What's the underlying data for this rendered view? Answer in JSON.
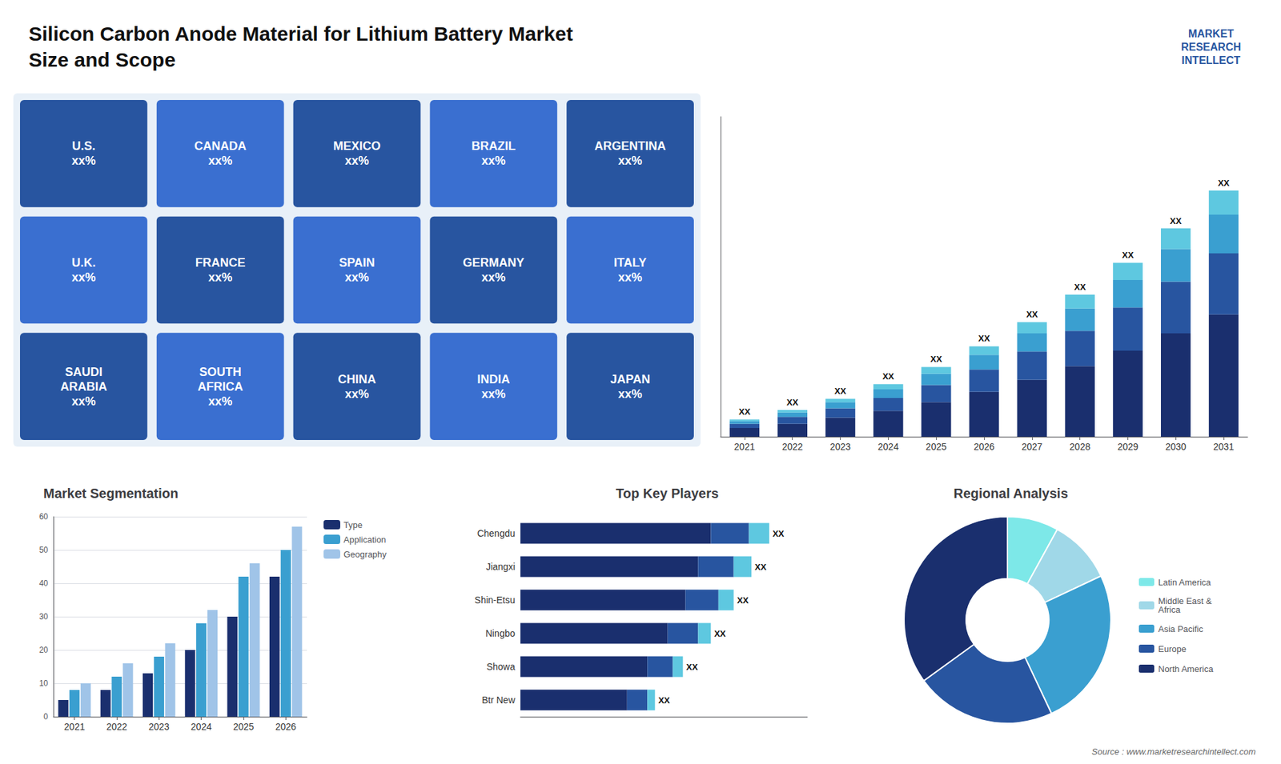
{
  "chart_data": [
    {
      "type": "bar",
      "title": "Silicon Carbon Anode Material for Lithium Battery Market\nSize and Scope",
      "stacked": true,
      "categories": [
        "2021",
        "2022",
        "2023",
        "2024",
        "2025",
        "2026",
        "2027",
        "2028",
        "2029",
        "2030",
        "2031"
      ],
      "series": [
        {
          "color": "#1a2f6e",
          "values": [
            1.0,
            1.5,
            2.2,
            3.0,
            4.0,
            5.2,
            6.6,
            8.2,
            10.0,
            12.0,
            14.2
          ]
        },
        {
          "color": "#2855a0",
          "values": [
            0.5,
            0.8,
            1.1,
            1.5,
            2.0,
            2.6,
            3.3,
            4.1,
            5.0,
            6.0,
            7.1
          ]
        },
        {
          "color": "#3a9fd0",
          "values": [
            0.3,
            0.5,
            0.7,
            1.0,
            1.3,
            1.7,
            2.1,
            2.6,
            3.2,
            3.8,
            4.5
          ]
        },
        {
          "color": "#5ec8e0",
          "values": [
            0.2,
            0.3,
            0.4,
            0.6,
            0.8,
            1.0,
            1.3,
            1.6,
            2.0,
            2.4,
            2.8
          ]
        }
      ],
      "value_labels": [
        "XX",
        "XX",
        "XX",
        "XX",
        "XX",
        "XX",
        "XX",
        "XX",
        "XX",
        "XX",
        "XX"
      ],
      "ylim": [
        0,
        37.18
      ],
      "yticks": [],
      "tick_labels": "x",
      "grid": false,
      "annotations": [
        "MARKET\nRESEARCH\nINTELLECT",
        "Source : www.marketresearchintellect.com"
      ]
    },
    {
      "type": "map",
      "annotations": [
        "U.S.\nxx%",
        "CANADA\nxx%",
        "MEXICO\nxx%",
        "BRAZIL\nxx%",
        "ARGENTINA\nxx%",
        "U.K.\nxx%",
        "FRANCE\nxx%",
        "SPAIN\nxx%",
        "GERMANY\nxx%",
        "ITALY\nxx%",
        "SAUDI\nARABIA\nxx%",
        "SOUTH\nAFRICA\nxx%",
        "CHINA\nxx%",
        "INDIA\nxx%",
        "JAPAN\nxx%"
      ]
    },
    {
      "type": "bar",
      "title": "Market Segmentation",
      "categories": [
        "2021",
        "2022",
        "2023",
        "2024",
        "2025",
        "2026"
      ],
      "series": [
        {
          "name": "Type",
          "color": "#1a2f6e",
          "values": [
            5,
            8,
            13,
            20,
            30,
            42
          ]
        },
        {
          "name": "Application",
          "color": "#3a9fd0",
          "values": [
            8,
            12,
            18,
            28,
            42,
            50
          ]
        },
        {
          "name": "Geography",
          "color": "#a0c4e8",
          "values": [
            10,
            16,
            22,
            32,
            46,
            57
          ]
        }
      ],
      "ylim": [
        0,
        60
      ],
      "yticks": [
        0,
        10,
        20,
        30,
        40,
        50,
        60
      ],
      "grid": true,
      "legend": "right"
    },
    {
      "type": "bar",
      "title": "Top Key Players",
      "orientation": "horizontal",
      "stacked": true,
      "categories": [
        "Chengdu",
        "Jiangxi",
        "Shin-Etsu",
        "Ningbo",
        "Showa",
        "Btr New"
      ],
      "series": [
        {
          "color": "#1a2f6e",
          "values": [
            0.75,
            0.7,
            0.65,
            0.58,
            0.5,
            0.42
          ]
        },
        {
          "color": "#2855a0",
          "values": [
            0.15,
            0.14,
            0.13,
            0.12,
            0.1,
            0.08
          ]
        },
        {
          "color": "#5ec8e0",
          "values": [
            0.08,
            0.07,
            0.06,
            0.05,
            0.04,
            0.03
          ]
        }
      ],
      "value_labels": [
        "XX",
        "XX",
        "XX",
        "XX",
        "XX",
        "XX"
      ],
      "xlim": [
        0,
        1.13
      ],
      "xticks": [],
      "tick_labels": "y",
      "grid": false
    },
    {
      "type": "pie",
      "title": "Regional Analysis",
      "categories": [
        "Latin America",
        "Middle East &\nAfrica",
        "Asia Pacific",
        "Europe",
        "North America"
      ],
      "values": [
        8,
        10,
        25,
        22,
        35
      ],
      "colors": [
        "#7de8e8",
        "#a0d8e8",
        "#3a9fd0",
        "#2855a0",
        "#1a2f6e"
      ],
      "legend": "right"
    }
  ]
}
